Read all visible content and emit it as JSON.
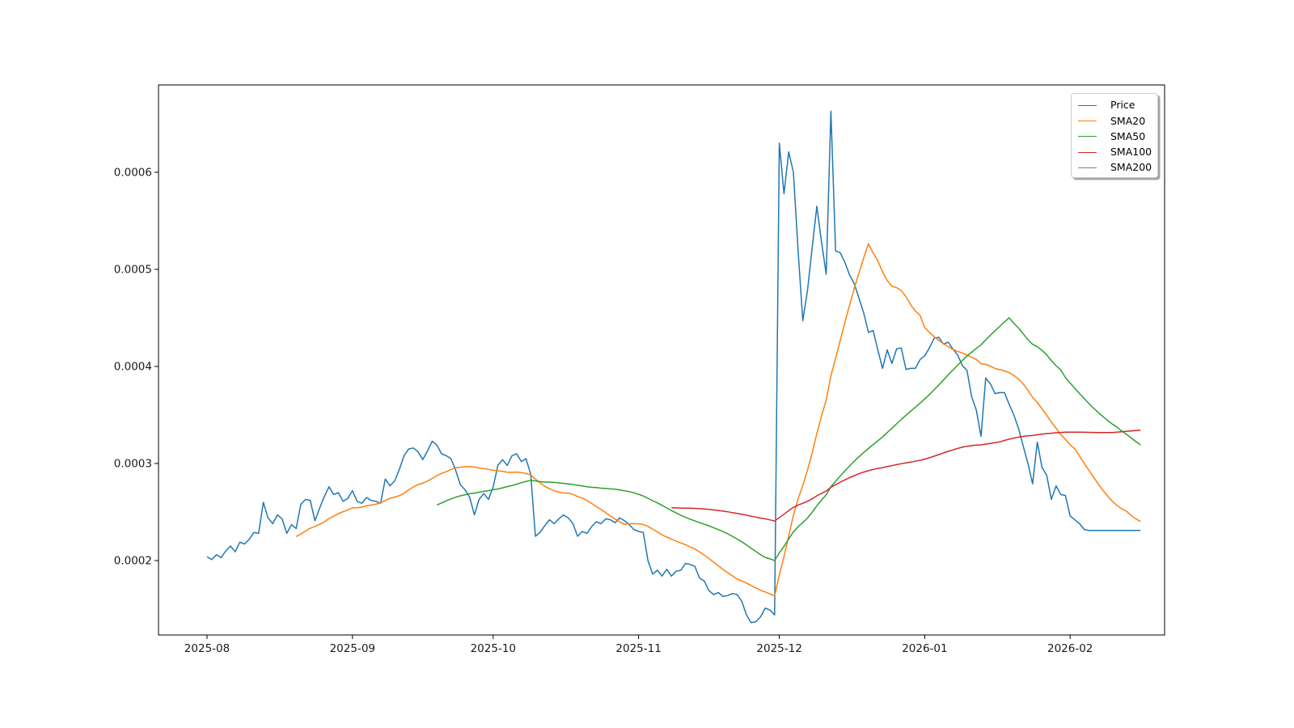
{
  "chart_data": {
    "type": "line",
    "title": "",
    "grid": false,
    "background_color": "#ffffff",
    "legend": {
      "position": "upper right",
      "shadow": true
    },
    "x_axis": {
      "label": "",
      "start_date": "2025-08-01",
      "num_points": 200,
      "ticks": [
        {
          "label": "2025-08",
          "day_index": 0
        },
        {
          "label": "2025-09",
          "day_index": 31
        },
        {
          "label": "2025-10",
          "day_index": 61
        },
        {
          "label": "2025-11",
          "day_index": 92
        },
        {
          "label": "2025-12",
          "day_index": 122
        },
        {
          "label": "2026-01",
          "day_index": 153
        },
        {
          "label": "2026-02",
          "day_index": 184
        }
      ]
    },
    "y_axis": {
      "label": "",
      "range": [
        0.000123,
        0.00069
      ],
      "ticks": [
        {
          "label": "0.0002",
          "value": 0.0002
        },
        {
          "label": "0.0003",
          "value": 0.0003
        },
        {
          "label": "0.0004",
          "value": 0.0004
        },
        {
          "label": "0.0005",
          "value": 0.0005
        },
        {
          "label": "0.0006",
          "value": 0.0006
        }
      ]
    },
    "series": [
      {
        "name": "Price",
        "color": "#1f77b4",
        "kind": "price"
      },
      {
        "name": "SMA20",
        "color": "#ff7f0e",
        "kind": "sma",
        "period": 20
      },
      {
        "name": "SMA50",
        "color": "#2ca02c",
        "kind": "sma",
        "period": 50
      },
      {
        "name": "SMA100",
        "color": "#d62728",
        "kind": "sma",
        "period": 100
      },
      {
        "name": "SMA200",
        "color": "#9467bd",
        "kind": "sma",
        "period": 200
      }
    ],
    "price_values": [
      0.000204,
      0.000201,
      0.000206,
      0.000203,
      0.00021,
      0.000215,
      0.000209,
      0.000219,
      0.000217,
      0.000222,
      0.000229,
      0.000228,
      0.00026,
      0.000244,
      0.000238,
      0.000247,
      0.000243,
      0.000228,
      0.000237,
      0.000233,
      0.000258,
      0.000263,
      0.000262,
      0.000241,
      0.000254,
      0.000266,
      0.000276,
      0.000268,
      0.00027,
      0.000261,
      0.000264,
      0.000272,
      0.000261,
      0.000259,
      0.000265,
      0.000262,
      0.000261,
      0.000259,
      0.000284,
      0.000277,
      0.000282,
      0.000294,
      0.000308,
      0.000315,
      0.000316,
      0.000312,
      0.000304,
      0.000313,
      0.000323,
      0.000319,
      0.00031,
      0.000308,
      0.000305,
      0.000293,
      0.000278,
      0.000273,
      0.000265,
      0.000247,
      0.000263,
      0.000269,
      0.000263,
      0.000276,
      0.000298,
      0.000304,
      0.000298,
      0.000308,
      0.00031,
      0.000302,
      0.000305,
      0.000289,
      0.000225,
      0.000229,
      0.000236,
      0.000242,
      0.000238,
      0.000243,
      0.000247,
      0.000244,
      0.000238,
      0.000225,
      0.00023,
      0.000228,
      0.000235,
      0.00024,
      0.000238,
      0.000243,
      0.000242,
      0.000239,
      0.000244,
      0.000241,
      0.000237,
      0.000232,
      0.00023,
      0.000229,
      0.0002,
      0.000186,
      0.00019,
      0.000184,
      0.000191,
      0.000184,
      0.000189,
      0.00019,
      0.000197,
      0.000196,
      0.000194,
      0.000182,
      0.000179,
      0.000169,
      0.000165,
      0.000167,
      0.000163,
      0.000164,
      0.000166,
      0.000165,
      0.000158,
      0.000144,
      0.000136,
      0.000137,
      0.000142,
      0.000151,
      0.000149,
      0.000144,
      0.00063,
      0.000578,
      0.000621,
      0.0006,
      0.00052,
      0.000447,
      0.000478,
      0.000522,
      0.000565,
      0.000528,
      0.000495,
      0.000663,
      0.000519,
      0.000517,
      0.000507,
      0.000494,
      0.000485,
      0.00047,
      0.000455,
      0.000435,
      0.000437,
      0.000417,
      0.000398,
      0.000417,
      0.000403,
      0.000418,
      0.000419,
      0.000397,
      0.000398,
      0.000398,
      0.000407,
      0.000411,
      0.000419,
      0.000429,
      0.00043,
      0.000423,
      0.000425,
      0.000418,
      0.000412,
      0.000401,
      0.000396,
      0.000369,
      0.000355,
      0.000328,
      0.000388,
      0.000382,
      0.000372,
      0.000373,
      0.000373,
      0.000361,
      0.00035,
      0.000336,
      0.000318,
      0.0003,
      0.000279,
      0.000322,
      0.000296,
      0.000288,
      0.000263,
      0.000277,
      0.000268,
      0.000267,
      0.000246,
      0.000242,
      0.000238,
      0.000232,
      0.000231,
      0.000231,
      0.000231,
      0.000231,
      0.000231,
      0.000231,
      0.000231,
      0.000231,
      0.000231,
      0.000231,
      0.000231,
      0.000231
    ]
  }
}
